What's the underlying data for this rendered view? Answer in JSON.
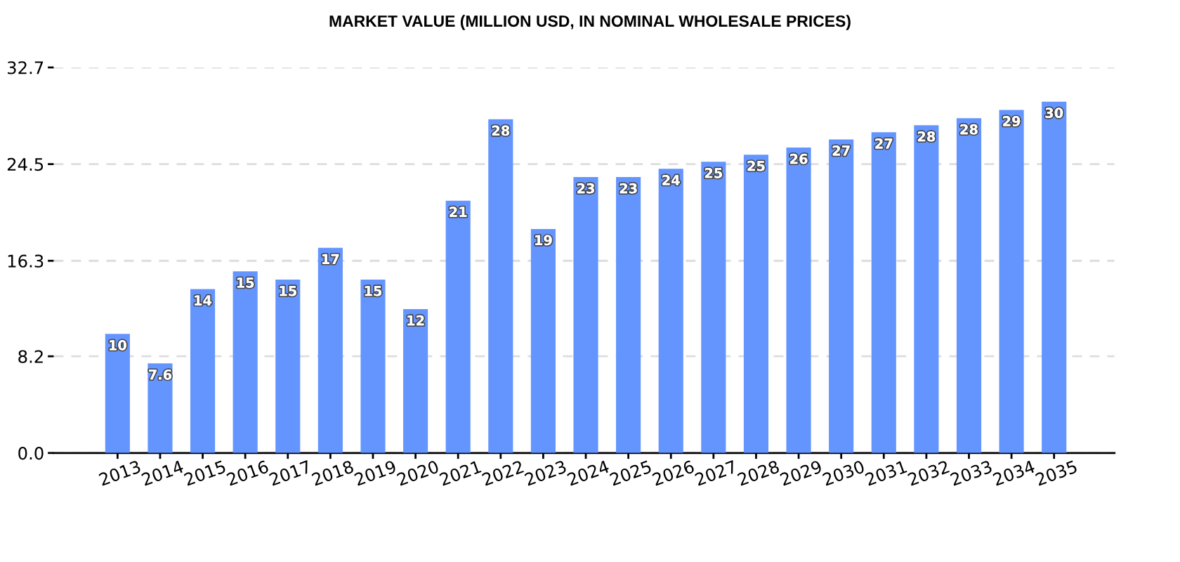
{
  "chart_data": {
    "type": "bar",
    "title": "MARKET VALUE (MILLION USD, IN NOMINAL WHOLESALE PRICES)",
    "categories": [
      "2013",
      "2014",
      "2015",
      "2016",
      "2017",
      "2018",
      "2019",
      "2020",
      "2021",
      "2022",
      "2023",
      "2024",
      "2025",
      "2026",
      "2027",
      "2028",
      "2029",
      "2030",
      "2031",
      "2032",
      "2033",
      "2034",
      "2035"
    ],
    "values": [
      10.1,
      7.6,
      13.9,
      15.4,
      14.7,
      17.4,
      14.7,
      12.2,
      21.4,
      28.3,
      19.0,
      23.4,
      23.4,
      24.1,
      24.7,
      25.3,
      25.9,
      26.6,
      27.2,
      27.8,
      28.4,
      29.1,
      29.8
    ],
    "value_labels": [
      "10",
      "7.6",
      "14",
      "15",
      "15",
      "17",
      "15",
      "12",
      "21",
      "28",
      "19",
      "23",
      "23",
      "24",
      "25",
      "25",
      "26",
      "27",
      "27",
      "28",
      "28",
      "29",
      "30"
    ],
    "color": "#6495ff",
    "ylim": [
      0,
      32.7
    ],
    "yticks": [
      {
        "value": 0,
        "label": "0.0"
      },
      8.2,
      16.3,
      24.5,
      32.7
    ],
    "grid": "y"
  }
}
